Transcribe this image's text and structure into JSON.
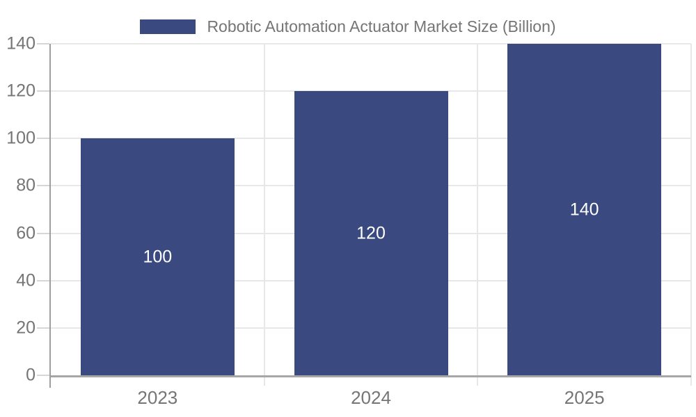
{
  "legend": {
    "label": "Robotic Automation Actuator Market Size (Billion)"
  },
  "chart_data": {
    "type": "bar",
    "title": "Robotic Automation Actuator Market Size (Billion)",
    "categories": [
      "2023",
      "2024",
      "2025"
    ],
    "values": [
      100,
      120,
      140
    ],
    "series": [
      {
        "name": "Robotic Automation Actuator Market Size (Billion)",
        "values": [
          100,
          120,
          140
        ]
      }
    ],
    "xlabel": "",
    "ylabel": "",
    "ylim": [
      0,
      140
    ],
    "ytick_step": 20,
    "yticks": [
      0,
      20,
      40,
      60,
      80,
      100,
      120,
      140
    ],
    "grid": true,
    "legend_position": "top-center",
    "bar_color": "#3A4A80",
    "bar_label_color": "#ffffff",
    "axis_text_color": "#757575"
  }
}
